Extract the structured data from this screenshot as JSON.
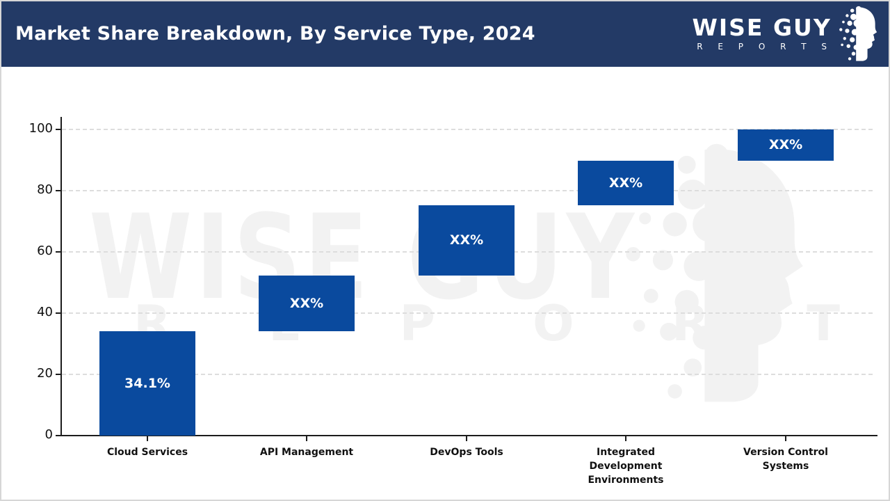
{
  "header": {
    "title": "Market Share Breakdown, By Service Type, 2024",
    "logo": {
      "line1": "WISE GUY",
      "line2": "R E P O R T S"
    }
  },
  "watermark": {
    "line1": "WISE GUY",
    "line2": "R E P O R T S"
  },
  "colors": {
    "header_bg": "#233a66",
    "bar": "#0a4a9e",
    "bar_label": "#ffffff",
    "grid": "#dddddd",
    "axis": "#1c1c1c",
    "tick_label": "#111111",
    "category_label": "#111111",
    "watermark": "#f2f2f2",
    "border": "#d6d6d6",
    "page_bg": "#ffffff",
    "title_text": "#ffffff"
  },
  "chart_data": {
    "type": "bar",
    "variant": "floating-waterfall",
    "title": "Market Share Breakdown, By Service Type, 2024",
    "xlabel": "",
    "ylabel": "",
    "ylim": [
      0,
      104
    ],
    "yticks": [
      0,
      20,
      40,
      60,
      80,
      100
    ],
    "grid": "horizontal-dashed",
    "legend": "none",
    "categories": [
      "Cloud Services",
      "API Management",
      "DevOps Tools",
      "Integrated Development Environments",
      "Version Control Systems"
    ],
    "category_lines": [
      [
        "Cloud Services"
      ],
      [
        "API Management"
      ],
      [
        "DevOps Tools"
      ],
      [
        "Integrated",
        "Development",
        "Environments"
      ],
      [
        "Version Control",
        "Systems"
      ]
    ],
    "bars": [
      {
        "start": 0,
        "end": 34.1,
        "label": "34.1%"
      },
      {
        "start": 34.1,
        "end": 52.3,
        "label": "XX%"
      },
      {
        "start": 52.3,
        "end": 75.2,
        "label": "XX%"
      },
      {
        "start": 75.2,
        "end": 89.8,
        "label": "XX%"
      },
      {
        "start": 89.8,
        "end": 100,
        "label": "XX%"
      }
    ]
  }
}
